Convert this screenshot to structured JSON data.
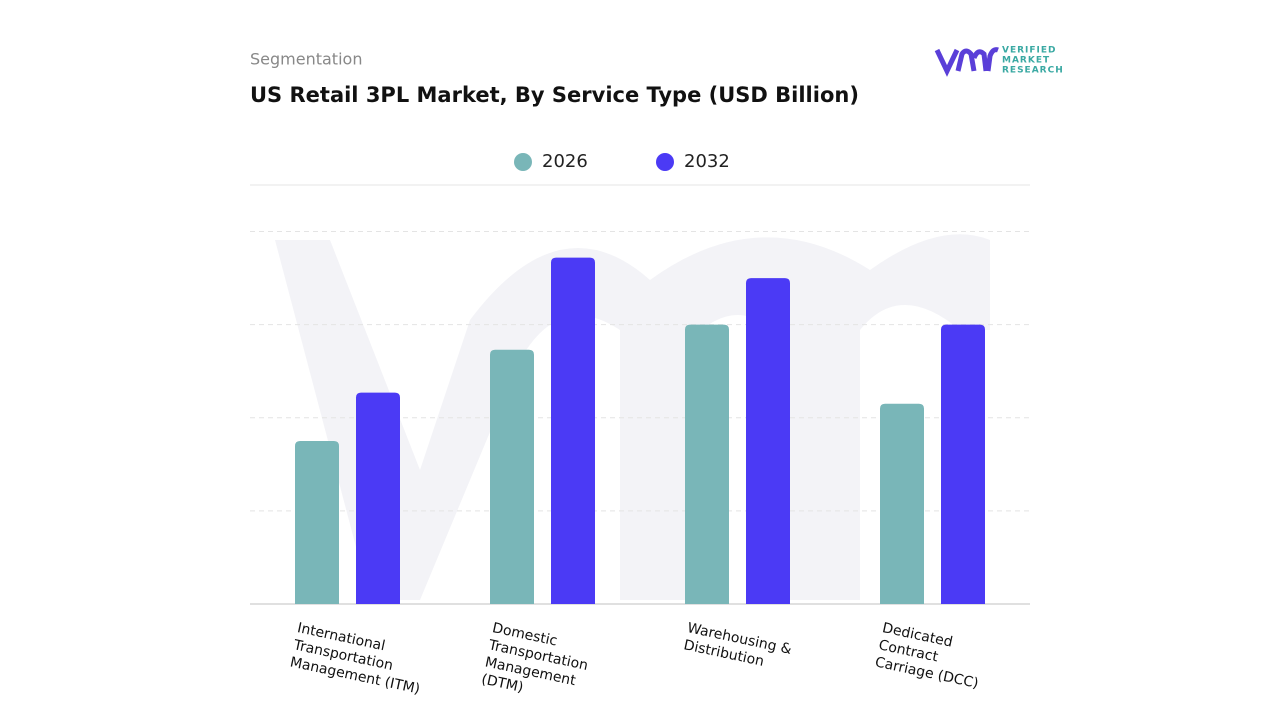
{
  "header": {
    "subtitle": "Segmentation",
    "logo": [
      "VERIFIED",
      "MARKET",
      "RESEARCH"
    ]
  },
  "chart_data": {
    "type": "bar",
    "title": "US Retail 3PL Market, By Service Type (USD Billion)",
    "categories": [
      "International\nTransportation\nManagement (ITM)",
      "Domestic\nTransportation\nManagement\n(DTM)",
      "Warehousing &\nDistribution",
      "Dedicated\nContract\nCarriage (DCC)"
    ],
    "series": [
      {
        "name": "2026",
        "color": "#79b6b8",
        "values": [
          1.75,
          2.73,
          3.0,
          2.15
        ]
      },
      {
        "name": "2032",
        "color": "#4b3af5",
        "values": [
          2.27,
          3.72,
          3.5,
          3.0
        ]
      }
    ],
    "ylim": [
      0,
      4.5
    ],
    "yticks": [
      1,
      2,
      3,
      4
    ],
    "grid": true
  }
}
